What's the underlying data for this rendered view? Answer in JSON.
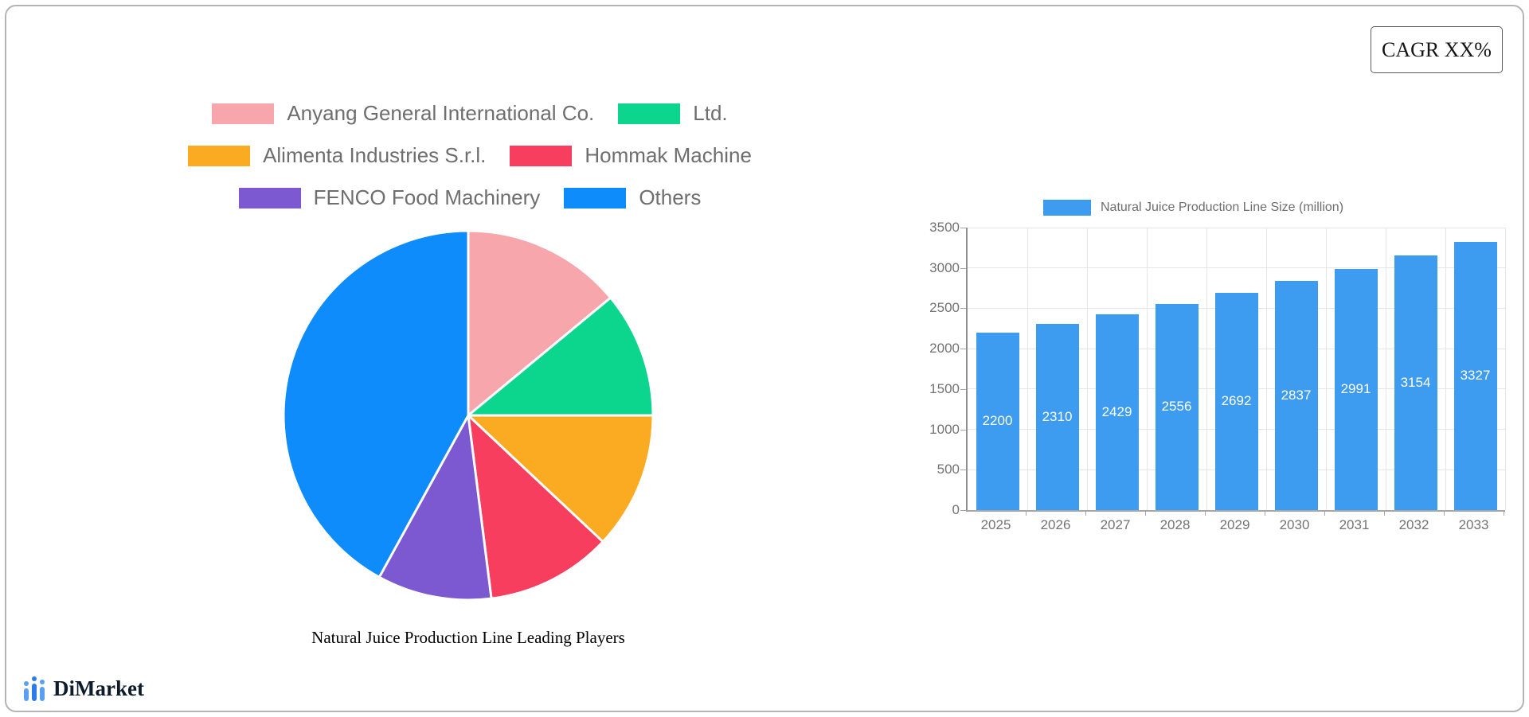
{
  "cagr": {
    "label": "CAGR XX%"
  },
  "logo": {
    "text": "DiMarket"
  },
  "colors": {
    "bar_blue": "#3E9CF0",
    "grid": "#e6e6e6",
    "axis": "#a6a6a6",
    "legend_text": "#6e6e6e",
    "axis_text": "#737373"
  },
  "chart_data": [
    {
      "type": "pie",
      "title": "Natural Juice Production Line Leading Players",
      "labels": [
        "Anyang General International Co.",
        "Ltd.",
        "Alimenta Industries S.r.l.",
        "Hommak Machine",
        "FENCO Food Machinery",
        "Others"
      ],
      "values": [
        14,
        11,
        12,
        11,
        10,
        42
      ],
      "colors": [
        "#F7A6AC",
        "#0CD68E",
        "#FBAB22",
        "#F73E5E",
        "#7C59D1",
        "#0E8CFB"
      ],
      "legend_rows": [
        [
          0,
          1
        ],
        [
          2,
          3
        ],
        [
          4,
          5
        ]
      ],
      "legend_position": "top",
      "start_angle_deg": -90,
      "direction": "clockwise"
    },
    {
      "type": "bar",
      "legend": "Natural Juice Production Line Size (million)",
      "categories": [
        "2025",
        "2026",
        "2027",
        "2028",
        "2029",
        "2030",
        "2031",
        "2032",
        "2033"
      ],
      "values": [
        2200,
        2310,
        2429,
        2556,
        2692,
        2837,
        2991,
        3154,
        3327
      ],
      "ylim": [
        0,
        3500
      ],
      "yticks": [
        0,
        500,
        1000,
        1500,
        2000,
        2500,
        3000,
        3500
      ],
      "bar_color": "#3E9CF0",
      "grid": true,
      "legend_position": "top",
      "value_labels": "inside-center-white"
    }
  ]
}
